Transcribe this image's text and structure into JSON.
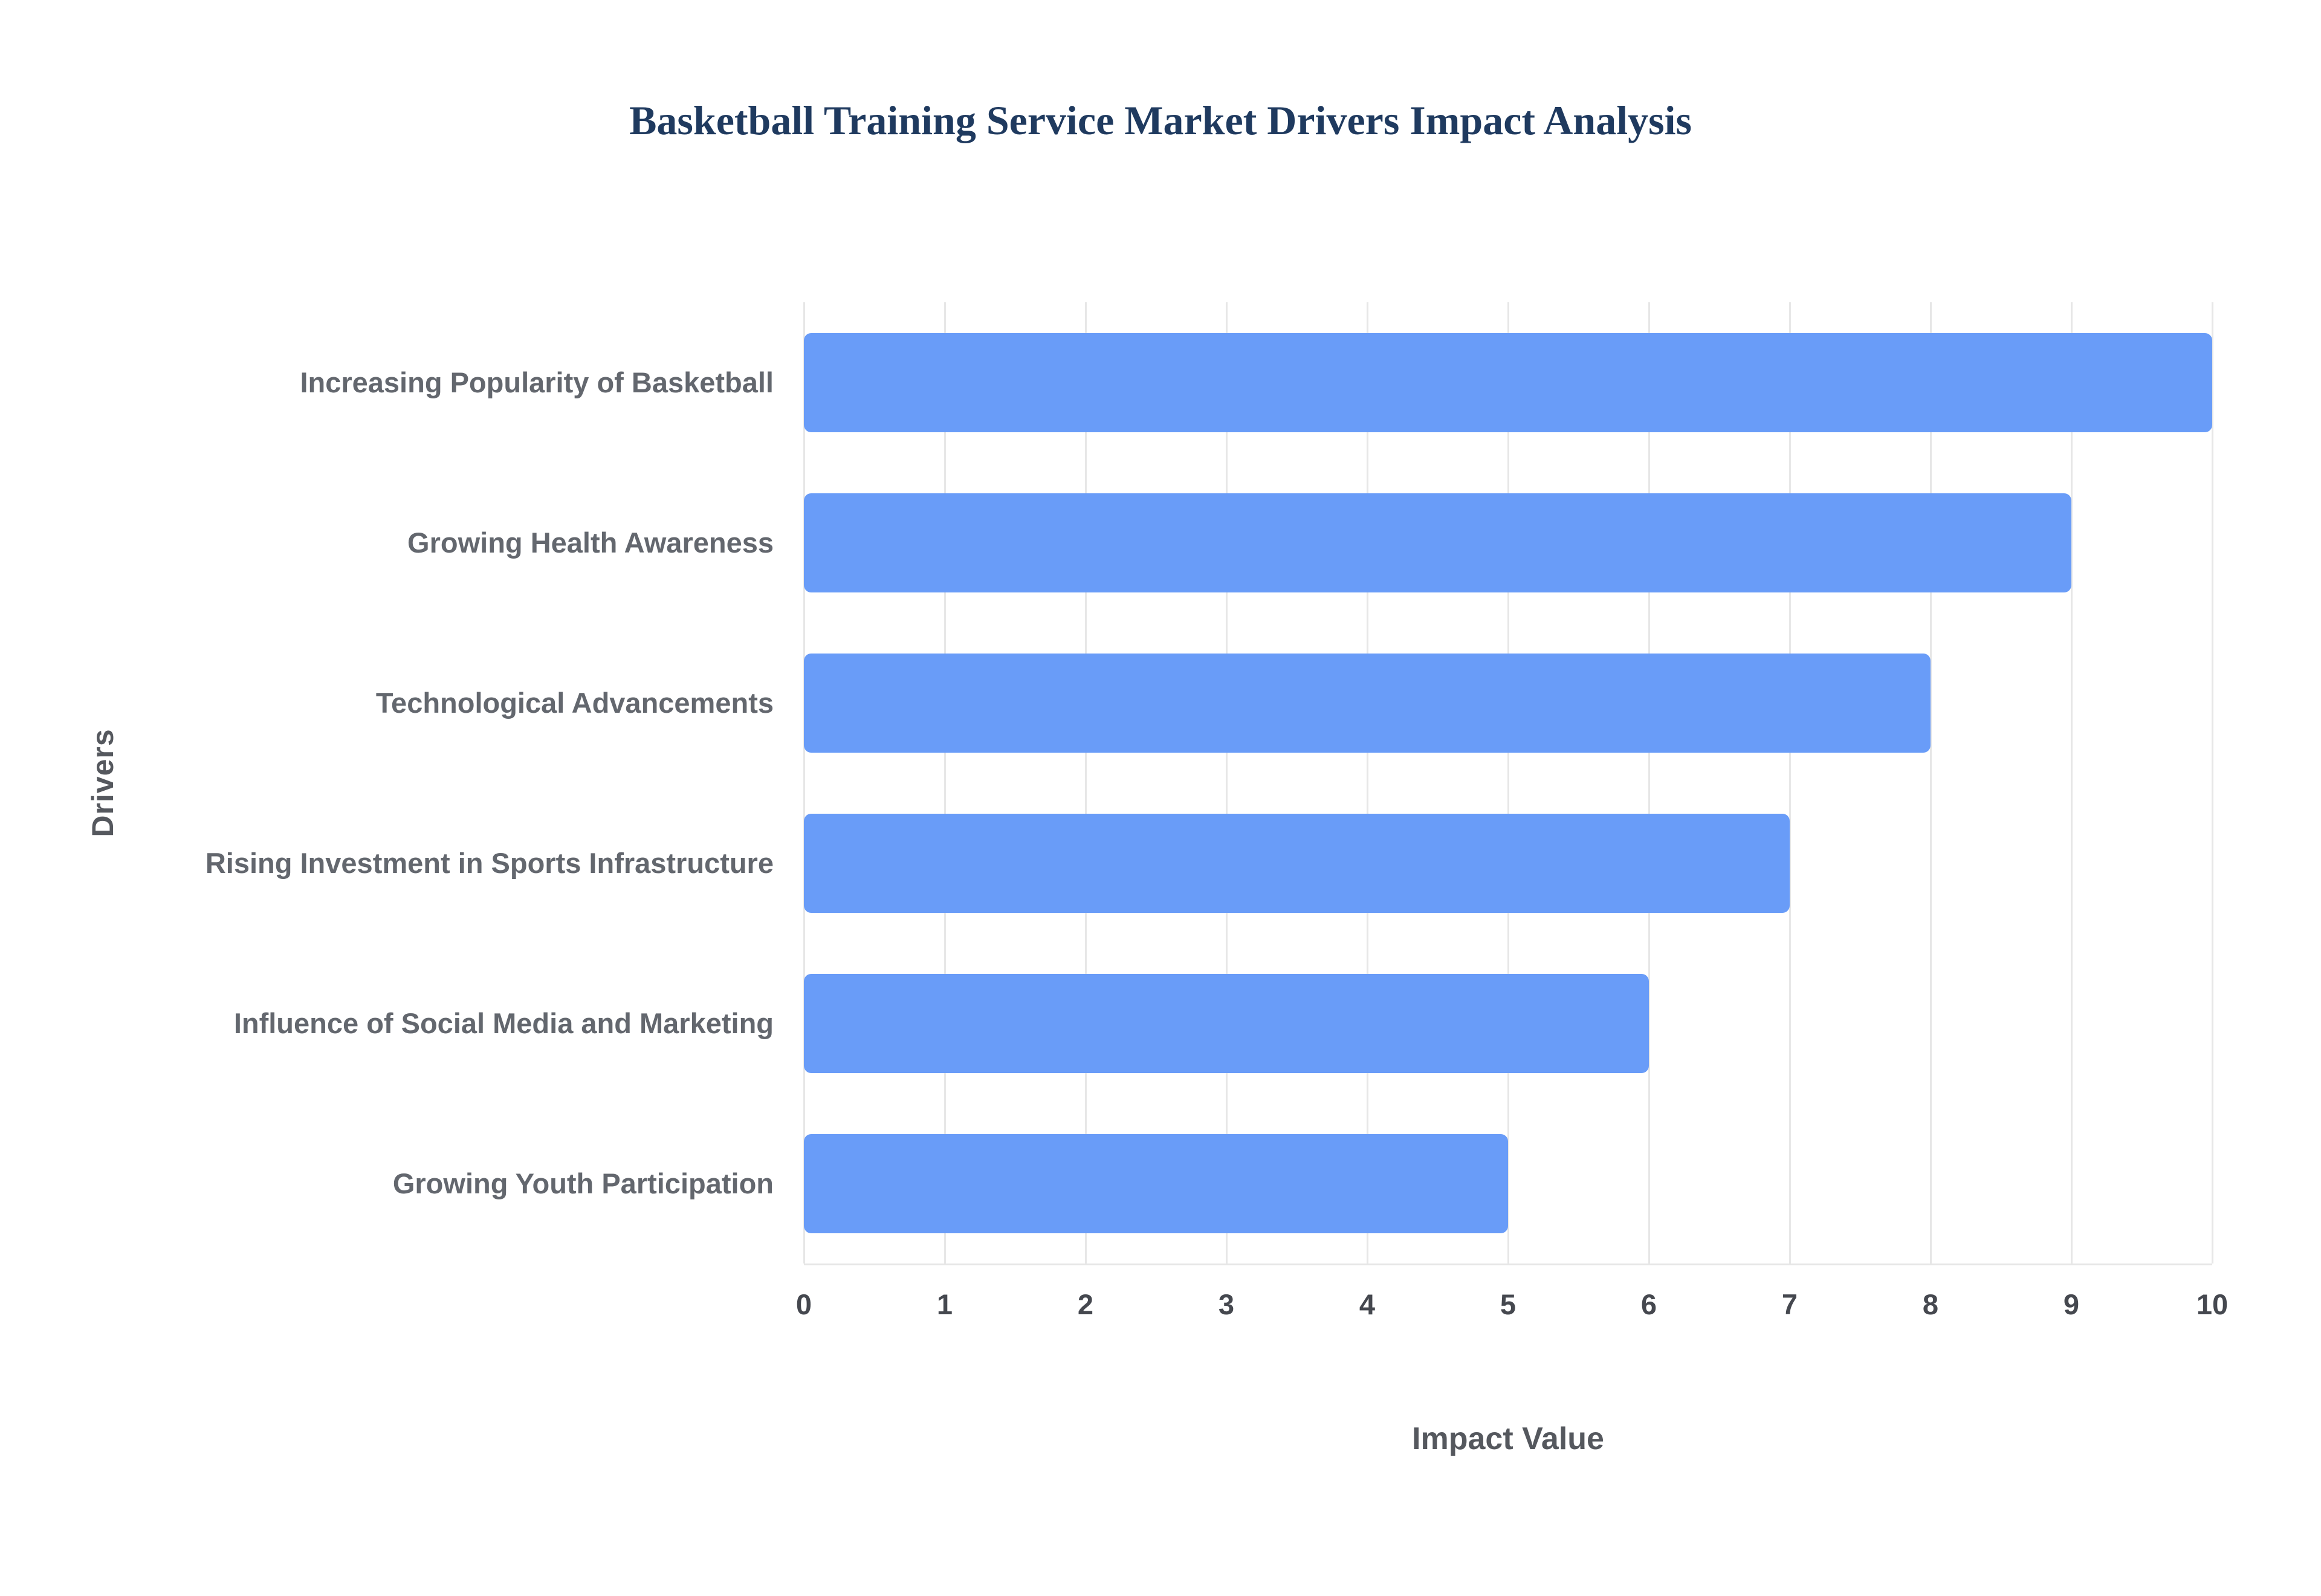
{
  "chart_data": {
    "type": "bar",
    "orientation": "horizontal",
    "title": "Basketball Training Service Market Drivers Impact Analysis",
    "categories": [
      "Increasing Popularity of Basketball",
      "Growing Health Awareness",
      "Technological Advancements",
      "Rising Investment in Sports Infrastructure",
      "Influence of Social Media and Marketing",
      "Growing Youth Participation"
    ],
    "values": [
      10,
      9,
      8,
      7,
      6,
      5
    ],
    "xlabel": "Impact Value",
    "ylabel": "Drivers",
    "xlim": [
      0,
      10
    ],
    "xticks": [
      0,
      1,
      2,
      3,
      4,
      5,
      6,
      7,
      8,
      9,
      10
    ],
    "grid": true,
    "legend": "none",
    "bar_color": "#699cf8",
    "background_color": "#ffffff",
    "title_color": "#1f3a5f",
    "axis_label_color": "#55585e",
    "tick_label_color": "#45484f"
  }
}
